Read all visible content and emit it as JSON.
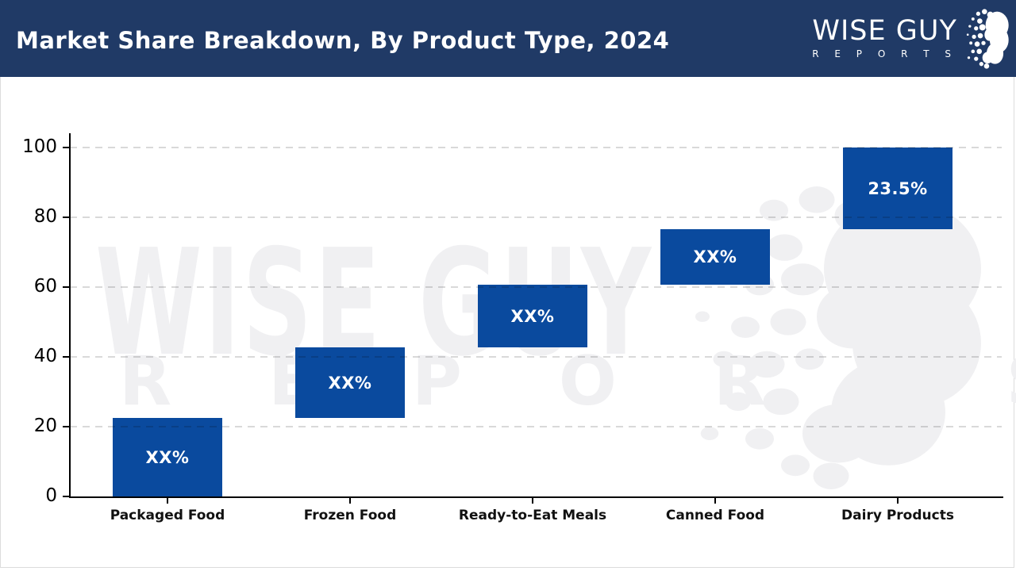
{
  "header": {
    "title": "Market Share Breakdown, By Product Type, 2024",
    "logo": {
      "line1": "WISE GUY",
      "line2": "R E P O R T S"
    }
  },
  "watermark": {
    "line1": "WISE GUY",
    "line2": "R E P O R T S"
  },
  "colors": {
    "header_bg": "#203a66",
    "bar": "#0a4a9e",
    "bar_label": "#ffffff",
    "grid": "#00000026",
    "axis": "#000000",
    "watermark": "#f0f0f2"
  },
  "chart_data": {
    "type": "bar",
    "subtype": "waterfall",
    "title": "Market Share Breakdown, By Product Type, 2024",
    "categories": [
      "Packaged Food",
      "Frozen Food",
      "Ready-to-Eat Meals",
      "Canned Food",
      "Dairy Products"
    ],
    "series": [
      {
        "segments": [
          {
            "category": "Packaged Food",
            "start": 0,
            "end": 22.4,
            "label": "XX%"
          },
          {
            "category": "Frozen Food",
            "start": 22.4,
            "end": 42.7,
            "label": "XX%"
          },
          {
            "category": "Ready-to-Eat Meals",
            "start": 42.7,
            "end": 60.7,
            "label": "XX%"
          },
          {
            "category": "Canned Food",
            "start": 60.7,
            "end": 76.5,
            "label": "XX%"
          },
          {
            "category": "Dairy Products",
            "start": 76.5,
            "end": 100,
            "label": "23.5%"
          }
        ]
      }
    ],
    "yticks": [
      0,
      20,
      40,
      60,
      80,
      100
    ],
    "ylim": [
      0,
      100
    ],
    "xlabel": "",
    "ylabel": "",
    "grid": "horizontal-dashed",
    "legend": "none"
  }
}
